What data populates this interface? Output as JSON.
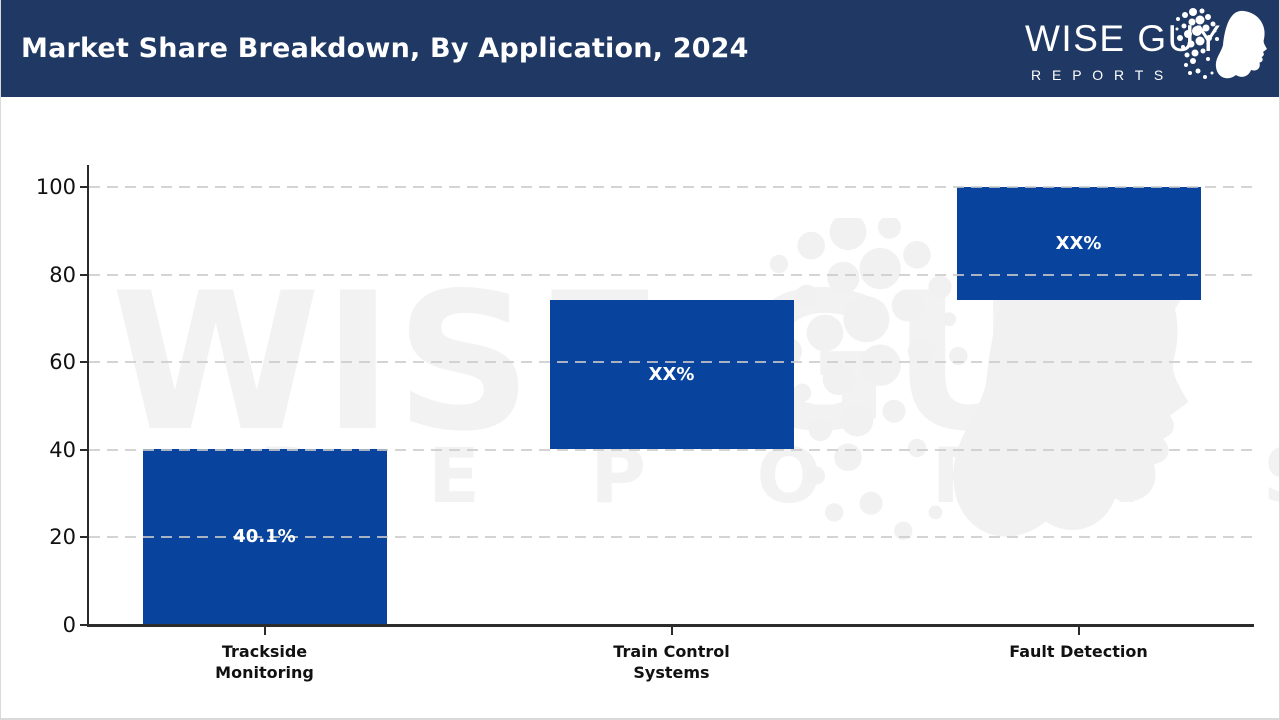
{
  "header": {
    "title": "Market Share Breakdown, By Application, 2024",
    "logo": {
      "line1": "WISE GUY",
      "line2": "R E P O R T S"
    }
  },
  "watermark": {
    "line1": "WISE GUY",
    "line2": "R E P O R T S"
  },
  "colors": {
    "header_bg": "#1f3864",
    "bar": "#08449e",
    "bar_label": "#ffffff",
    "axis": "#2b2b2b",
    "grid": "#d8d8d8",
    "tick_label": "#111111",
    "watermark": "#f2f2f2",
    "page_border": "#d9d9d9",
    "logo_text": "#ffffff"
  },
  "chart_data": {
    "type": "bar",
    "subtype": "floating-segment breakdown (waterfall-style, segments sum to 100%)",
    "title": "Market Share Breakdown, By Application, 2024",
    "categories": [
      "Trackside Monitoring",
      "Train Control Systems",
      "Fault Detection"
    ],
    "category_lines": [
      [
        "Trackside",
        "Monitoring"
      ],
      [
        "Train Control",
        "Systems"
      ],
      [
        "Fault Detection"
      ]
    ],
    "segments": [
      {
        "category": "Trackside Monitoring",
        "start": 0,
        "end": 40.1,
        "label": "40.1%",
        "estimated_value": 40.1
      },
      {
        "category": "Train Control Systems",
        "start": 40.1,
        "end": 74.2,
        "label": "XX%",
        "estimated_value": 34.1
      },
      {
        "category": "Fault Detection",
        "start": 74.2,
        "end": 100,
        "label": "XX%",
        "estimated_value": 25.8
      }
    ],
    "yticks": [
      0,
      20,
      40,
      60,
      80,
      100
    ],
    "ylim": [
      0,
      105
    ],
    "xlabel": "",
    "ylabel": "",
    "grid": {
      "axis": "y",
      "style": "dashed",
      "drawn_over_bars": true
    },
    "legend": null
  }
}
